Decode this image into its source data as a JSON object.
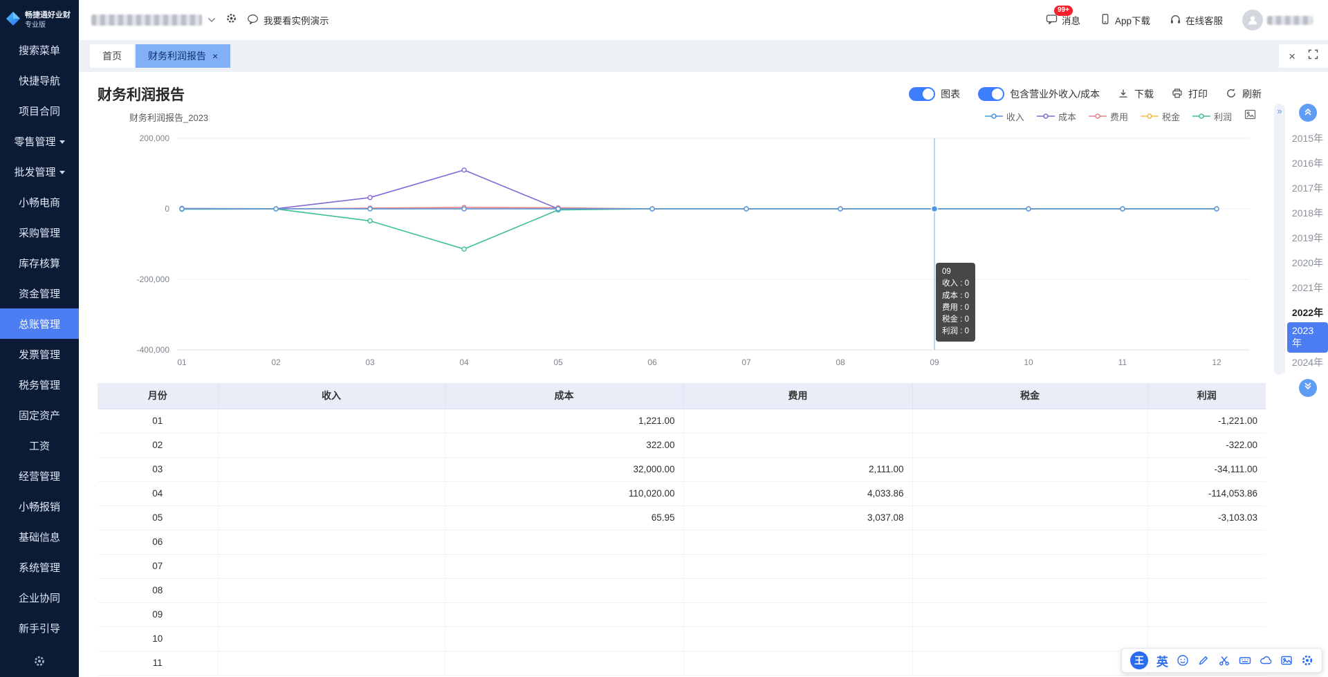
{
  "colors": {
    "sidebar_bg": "#0b1b36",
    "accent_blue": "#4d7df2",
    "toggle_on": "#3d7eff",
    "active_tab_bg": "#82b0f5",
    "badge_red": "#f5222d",
    "ime_blue": "#2a6cf0",
    "table_header_bg": "#e9edf7"
  },
  "sidebar": {
    "logo_line1": "畅捷通好业财",
    "logo_line2": "专业版",
    "items": [
      {
        "label": "搜索菜单"
      },
      {
        "label": "快捷导航"
      },
      {
        "label": "项目合同"
      },
      {
        "label": "零售管理",
        "dropdown": true
      },
      {
        "label": "批发管理",
        "dropdown": true
      },
      {
        "label": "小畅电商"
      },
      {
        "label": "采购管理"
      },
      {
        "label": "库存核算"
      },
      {
        "label": "资金管理"
      },
      {
        "label": "总账管理",
        "active": true
      },
      {
        "label": "发票管理"
      },
      {
        "label": "税务管理"
      },
      {
        "label": "固定资产"
      },
      {
        "label": "工资"
      },
      {
        "label": "经营管理"
      },
      {
        "label": "小畅报销"
      },
      {
        "label": "基础信息"
      },
      {
        "label": "系统管理"
      },
      {
        "label": "企业协同"
      },
      {
        "label": "新手引导"
      }
    ]
  },
  "topbar": {
    "demo_label": "我要看实例演示",
    "messages_label": "消息",
    "messages_badge": "99+",
    "app_download_label": "App下载",
    "support_label": "在线客服"
  },
  "tabs": [
    {
      "label": "首页",
      "active": false,
      "closable": false
    },
    {
      "label": "财务利润报告",
      "active": true,
      "closable": true
    }
  ],
  "page": {
    "title": "财务利润报告",
    "chart_toggle_label": "图表",
    "include_toggle_label": "包含营业外收入/成本",
    "download_label": "下载",
    "print_label": "打印",
    "refresh_label": "刷新"
  },
  "chart_data": {
    "type": "line",
    "title": "财务利润报告_2023",
    "x": [
      "01",
      "02",
      "03",
      "04",
      "05",
      "06",
      "07",
      "08",
      "09",
      "10",
      "11",
      "12"
    ],
    "ylim": [
      -400000,
      200000
    ],
    "grid": true,
    "legend_position": "top-right",
    "y_ticks": [
      {
        "v": 200000,
        "label": "200,000"
      },
      {
        "v": 0,
        "label": "0"
      },
      {
        "v": -200000,
        "label": "-200,000"
      },
      {
        "v": -400000,
        "label": "-400,000"
      }
    ],
    "series": [
      {
        "name": "收入",
        "color": "#4f93e8",
        "values": [
          0,
          0,
          0,
          0,
          0,
          0,
          0,
          0,
          0,
          0,
          0,
          0
        ]
      },
      {
        "name": "成本",
        "color": "#8467d7",
        "values": [
          1221,
          322,
          32000,
          110020,
          65.95,
          0,
          0,
          0,
          0,
          0,
          0,
          0
        ]
      },
      {
        "name": "费用",
        "color": "#e8808c",
        "values": [
          0,
          0,
          2111,
          4033.86,
          3037.08,
          0,
          0,
          0,
          0,
          0,
          0,
          0
        ]
      },
      {
        "name": "税金",
        "color": "#f2bd42",
        "values": [
          0,
          0,
          0,
          0,
          0,
          0,
          0,
          0,
          0,
          0,
          0,
          0
        ]
      },
      {
        "name": "利润",
        "color": "#3bbf9a",
        "values": [
          -1221,
          -322,
          -34111,
          -114053.86,
          -3103.03,
          0,
          0,
          0,
          0,
          0,
          0,
          0
        ]
      }
    ],
    "tooltip": {
      "month": "09",
      "highlight_index": 8,
      "lines": [
        "收入 : 0",
        "成本 : 0",
        "费用 : 0",
        "税金 : 0",
        "利润 : 0"
      ]
    }
  },
  "table": {
    "headers": [
      "月份",
      "收入",
      "成本",
      "费用",
      "税金",
      "利润"
    ],
    "rows": [
      [
        "01",
        "",
        "1,221.00",
        "",
        "",
        "-1,221.00"
      ],
      [
        "02",
        "",
        "322.00",
        "",
        "",
        "-322.00"
      ],
      [
        "03",
        "",
        "32,000.00",
        "2,111.00",
        "",
        "-34,111.00"
      ],
      [
        "04",
        "",
        "110,020.00",
        "4,033.86",
        "",
        "-114,053.86"
      ],
      [
        "05",
        "",
        "65.95",
        "3,037.08",
        "",
        "-3,103.03"
      ],
      [
        "06",
        "",
        "",
        "",
        "",
        ""
      ],
      [
        "07",
        "",
        "",
        "",
        "",
        ""
      ],
      [
        "08",
        "",
        "",
        "",
        "",
        ""
      ],
      [
        "09",
        "",
        "",
        "",
        "",
        ""
      ],
      [
        "10",
        "",
        "",
        "",
        "",
        ""
      ],
      [
        "11",
        "",
        "",
        "",
        "",
        ""
      ]
    ]
  },
  "year_panel": {
    "years": [
      "2015年",
      "2016年",
      "2017年",
      "2018年",
      "2019年",
      "2020年",
      "2021年",
      "2022年",
      "2023年",
      "2024年"
    ],
    "active": "2023年",
    "emphasis": "2022年"
  },
  "ime": {
    "logo": "王",
    "lang": "英"
  }
}
